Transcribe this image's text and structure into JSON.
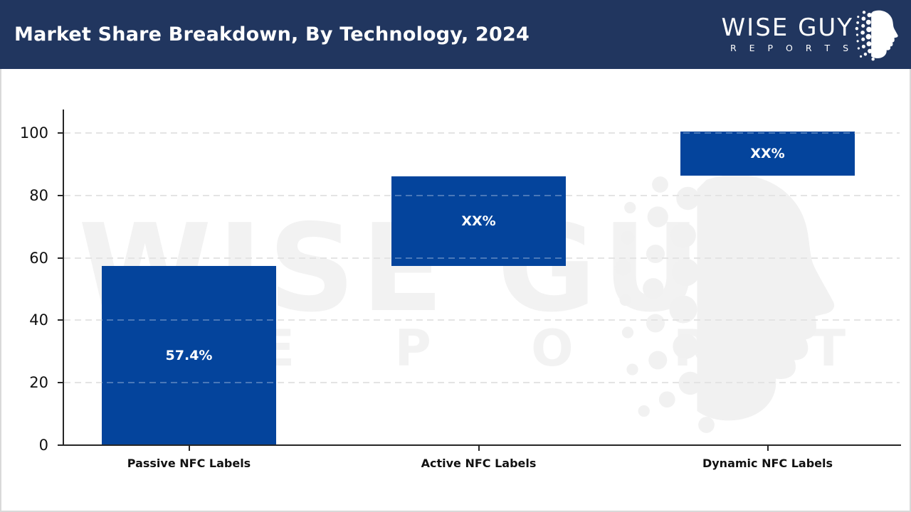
{
  "header": {
    "title": "Market Share Breakdown, By Technology, 2024",
    "logo": {
      "name": "WISE GUY",
      "sub": "R E P O R T S"
    }
  },
  "watermark": {
    "big_text": "WISE GUY",
    "sub_text": "R E P O R T S"
  },
  "chart_data": {
    "type": "bar",
    "subtype": "floating-waterfall-stacked-to-100",
    "title": "Market Share Breakdown, By Technology, 2024",
    "categories": [
      "Passive NFC Labels",
      "Active NFC Labels",
      "Dynamic NFC Labels"
    ],
    "segments": [
      {
        "category": "Passive NFC Labels",
        "start": 0,
        "end": 57.4,
        "label": "57.4%"
      },
      {
        "category": "Active NFC Labels",
        "start": 57.4,
        "end": 86.1,
        "label": "XX%"
      },
      {
        "category": "Dynamic NFC Labels",
        "start": 86.4,
        "end": 100.5,
        "label": "XX%"
      }
    ],
    "xlabel": "",
    "ylabel": "",
    "ylim": [
      0,
      107
    ],
    "yticks": [
      0,
      20,
      40,
      60,
      80,
      100
    ],
    "grid": "horizontal-dashed",
    "legend": "none",
    "bar_color": "#04449C",
    "bar_label_color": "#ffffff"
  },
  "colors": {
    "header_bg": "#21365F",
    "grid": "#d9d9d9",
    "axis": "#262626",
    "watermark": "#f2f2f2"
  }
}
